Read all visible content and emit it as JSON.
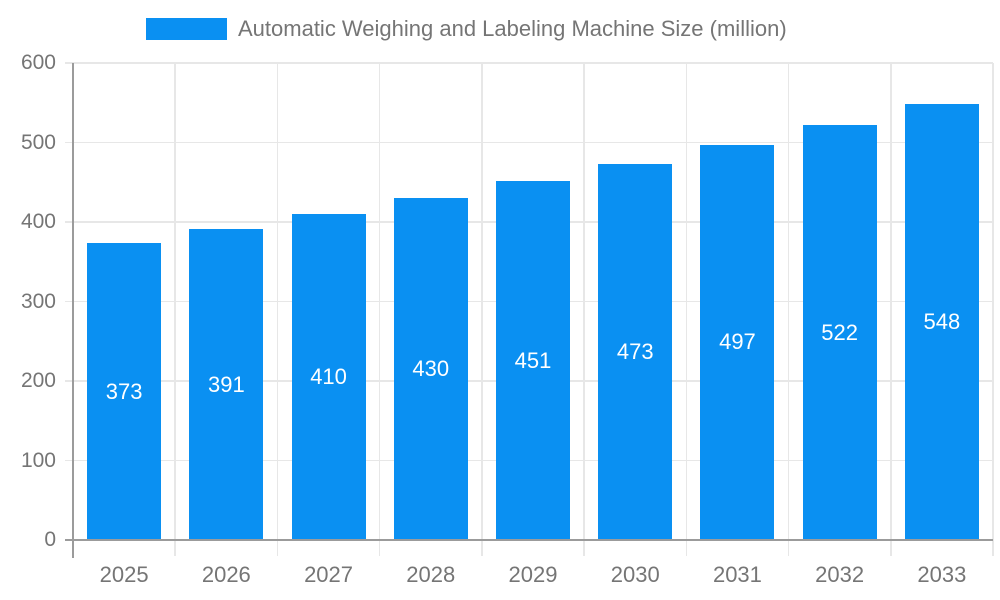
{
  "chart_data": {
    "type": "bar",
    "categories": [
      "2025",
      "2026",
      "2027",
      "2028",
      "2029",
      "2030",
      "2031",
      "2032",
      "2033"
    ],
    "series": [
      {
        "name": "Automatic Weighing and Labeling Machine Size (million)",
        "values": [
          373,
          391,
          410,
          430,
          451,
          473,
          497,
          522,
          548
        ]
      }
    ],
    "value_labels_shown": true,
    "value_label_position": "inside-center",
    "ylim": [
      0,
      600
    ],
    "ytick_step": 100,
    "yticks": [
      0,
      100,
      200,
      300,
      400,
      500,
      600
    ],
    "grid": true,
    "legend_position": "top-center",
    "colors": {
      "bar": "#0a90f2",
      "grid": "#e7e7e7",
      "axis": "#9b9b9b",
      "text": "#757575",
      "value_label": "#ffffff",
      "background": "#ffffff"
    }
  }
}
